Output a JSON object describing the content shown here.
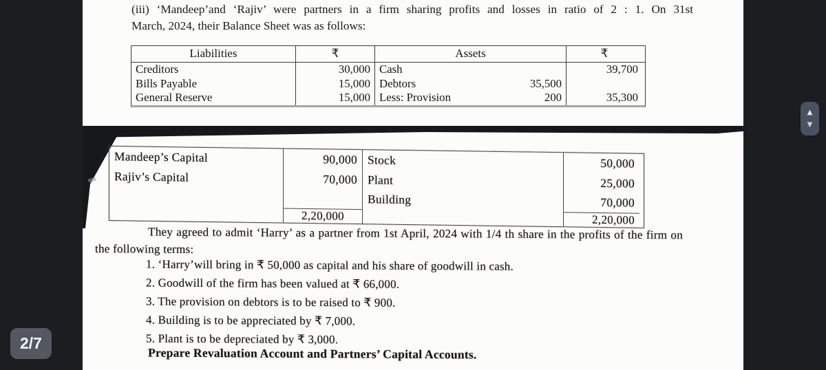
{
  "viewer": {
    "page_indicator": "2/7",
    "scroll_up_icon": "▲",
    "scroll_down_icon": "▼",
    "colors": {
      "background": "#1b1d21",
      "page": "#fcfcfb",
      "seam": "#17181c",
      "badge": "#53575f",
      "scroll_pill": "#4a5160"
    }
  },
  "document": {
    "intro_line1": "(iii)  ‘Mandeep’and ‘Rajiv’ were partners in a firm sharing profits and losses in ratio of 2 : 1. On 31st",
    "intro_line2": "March, 2024, their Balance Sheet was as follows:"
  },
  "balance_sheet_top": {
    "headers": {
      "liabilities": "Liabilities",
      "amount_left": "₹",
      "assets": "Assets",
      "amount_right": "₹"
    },
    "rows": [
      {
        "liability": "Creditors",
        "l_amount": "30,000",
        "asset": "Cash",
        "a_sub": "",
        "a_amount": "39,700"
      },
      {
        "liability": "Bills Payable",
        "l_amount": "15,000",
        "asset": "Debtors",
        "a_sub": "35,500",
        "a_amount": ""
      },
      {
        "liability": "General Reserve",
        "l_amount": "15,000",
        "asset": "Less: Provision",
        "a_sub": "200",
        "a_amount": "35,300"
      }
    ]
  },
  "balance_sheet_bottom": {
    "rows": [
      {
        "liability": "Mandeep’s Capital",
        "l_amount": "90,000",
        "asset": "Stock",
        "a_amount": "50,000"
      },
      {
        "liability": "Rajiv’s Capital",
        "l_amount": "70,000",
        "asset": "Plant",
        "a_amount": "25,000"
      },
      {
        "liability": "",
        "l_amount": "",
        "asset": "Building",
        "a_amount": "70,000"
      }
    ],
    "total_left": "2,20,000",
    "total_right": "2,20,000"
  },
  "narrative": {
    "admission": "They agreed to admit ‘Harry’ as a partner from 1st April, 2024 with 1/4 th share in the profits of the firm on the following terms:",
    "terms": [
      "1.  ‘Harry’will bring in ₹ 50,000 as capital and his share of goodwill in cash.",
      "2. Goodwill of the firm has been valued at ₹ 66,000.",
      "3. The provision on debtors is to be raised to ₹ 900.",
      "4. Building is to be appreciated by ₹ 7,000.",
      "5. Plant is to be depreciated by ₹ 3,000."
    ],
    "instruction": "Prepare Revaluation Account and Partners’ Capital Accounts."
  }
}
